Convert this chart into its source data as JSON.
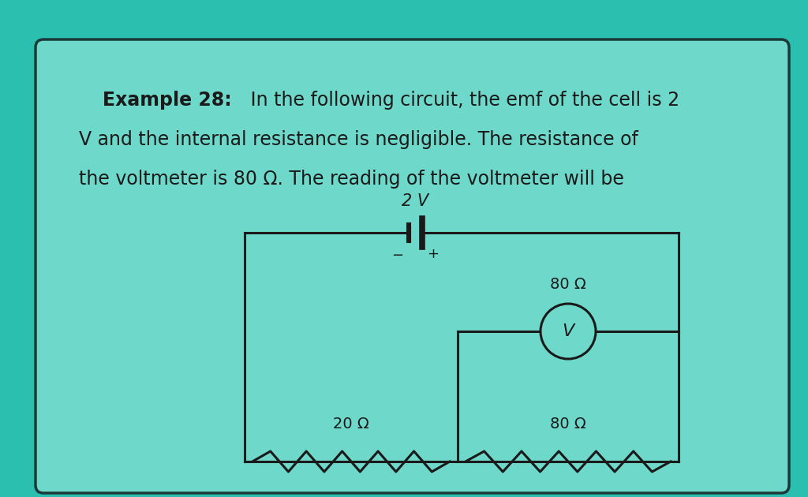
{
  "bg_color": "#2bbfb0",
  "paper_color": "#5ecfbf",
  "card_color": "#6ed8ca",
  "title_bold": "Example 28:",
  "title_rest": " In the following circuit, the emf of the cell is 2",
  "line2": "V and the internal resistance is negligible. The resistance of",
  "line3": "the voltmeter is 80 Ω. The reading of the voltmeter will be",
  "emf_label": "2 V",
  "r1_label": "20 Ω",
  "r2_label": "80 Ω",
  "rv_label": "80 Ω",
  "voltmeter_label": "V",
  "wire_color": "#1a1a1a",
  "text_color": "#1a1a1a"
}
